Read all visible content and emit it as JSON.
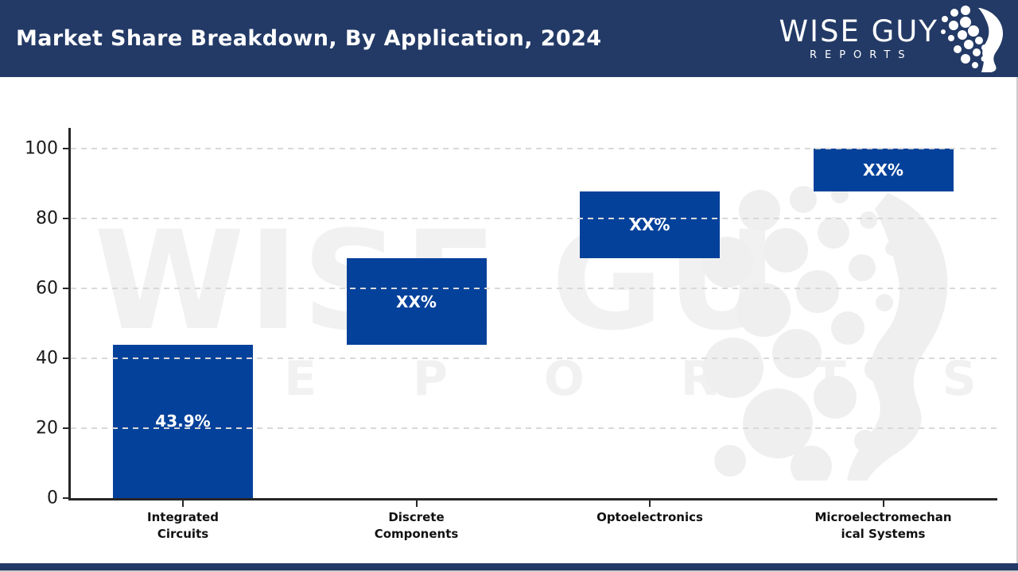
{
  "header": {
    "title": "Market Share Breakdown, By Application, 2024",
    "bg_color": "#233a66",
    "logo": {
      "line1": "WISE GUY",
      "line2": "REPORTS"
    }
  },
  "footer": {
    "bg_color": "#233a66"
  },
  "watermark": {
    "line1": "WISE GU",
    "line2": "R E P O R T S"
  },
  "chart_data": {
    "type": "bar",
    "subtype": "waterfall",
    "title": "Market Share Breakdown, By Application, 2024",
    "xlabel": "",
    "ylabel": "",
    "ylim": [
      0,
      100
    ],
    "yticks": [
      0,
      20,
      40,
      60,
      80,
      100
    ],
    "grid": "horizontal-dashed",
    "legend": "none",
    "bar_color": "#04419a",
    "label_color": "#ffffff",
    "categories": [
      "Integrated Circuits",
      "Discrete Components",
      "Optoelectronics",
      "Microelectromechanical Systems"
    ],
    "tick_display": [
      [
        "Integrated",
        "Circuits"
      ],
      [
        "Discrete",
        "Components"
      ],
      [
        "Optoelectronics"
      ],
      [
        "Microelectromechan",
        "ical Systems"
      ]
    ],
    "segments": [
      {
        "category": "Integrated Circuits",
        "start": 0,
        "end": 43.9,
        "label": "43.9%"
      },
      {
        "category": "Discrete Components",
        "start": 43.9,
        "end": 68.6,
        "label": "XX%"
      },
      {
        "category": "Optoelectronics",
        "start": 68.6,
        "end": 87.7,
        "label": "XX%"
      },
      {
        "category": "Microelectromechanical Systems",
        "start": 87.7,
        "end": 100,
        "label": "XX%"
      }
    ]
  }
}
